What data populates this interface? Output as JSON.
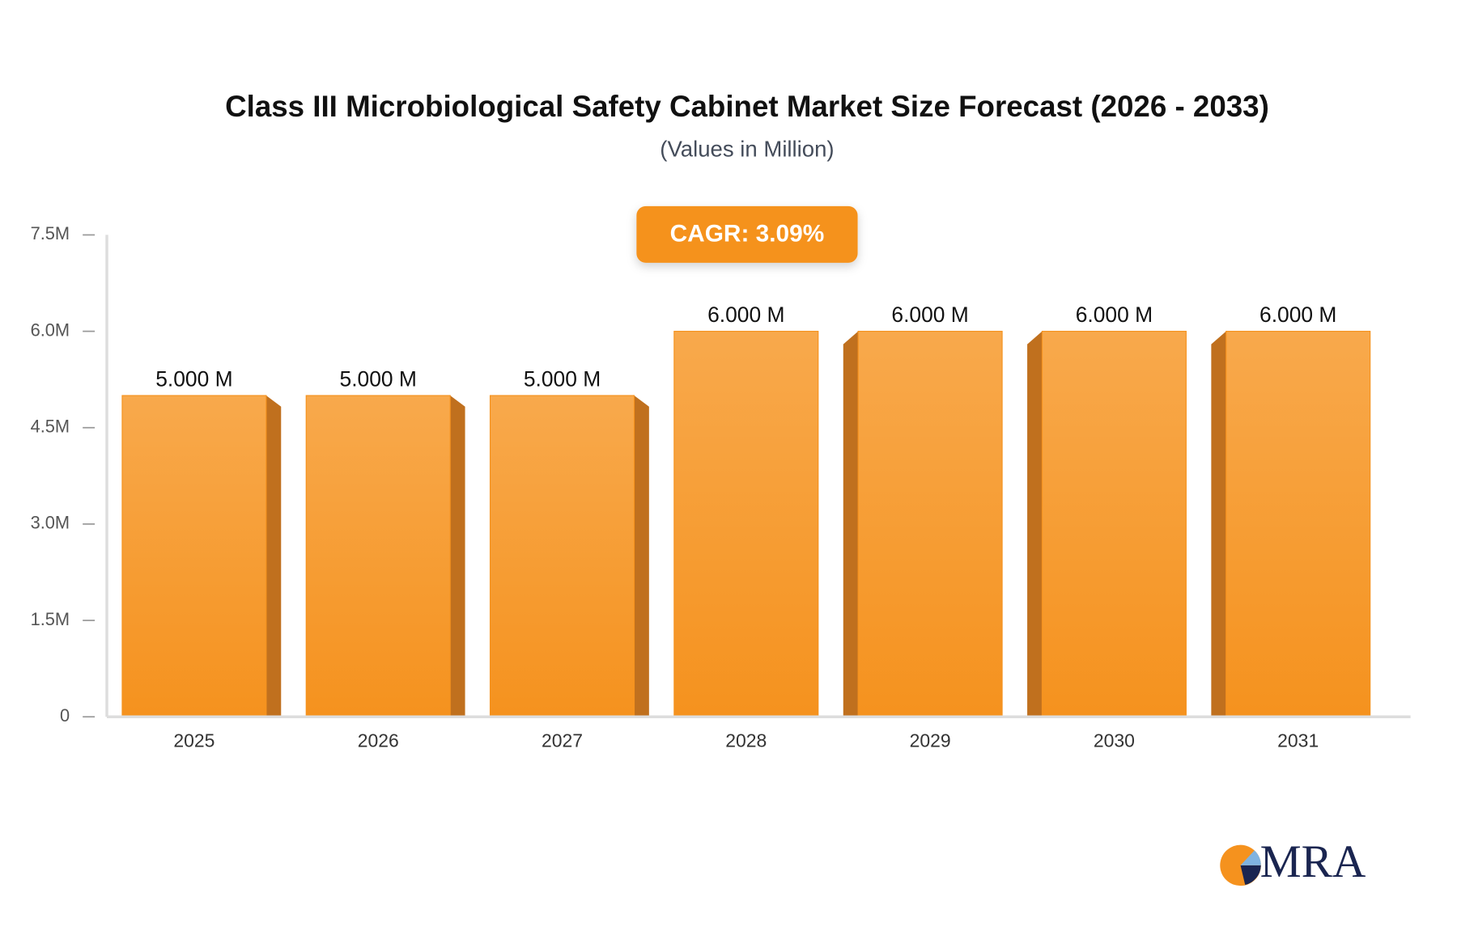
{
  "chart_data": {
    "type": "bar",
    "title": "Class III Microbiological Safety Cabinet Market Size Forecast (2026 - 2033)",
    "subtitle": "(Values in Million)",
    "annotation": "CAGR: 3.09%",
    "logo_text": "MRA",
    "categories": [
      "2025",
      "2026",
      "2027",
      "2028",
      "2029",
      "2030",
      "2031"
    ],
    "values": [
      5000000,
      5000000,
      5000000,
      6000000,
      6000000,
      6000000,
      6000000
    ],
    "value_labels": [
      "5.000 M",
      "5.000 M",
      "5.000 M",
      "6.000 M",
      "6.000 M",
      "6.000 M",
      "6.000 M"
    ],
    "color": "#f5921e",
    "ylim": [
      0,
      7500000
    ],
    "yticks": [
      0,
      {
        "value": 1500000,
        "label": "1.5M"
      },
      {
        "value": 3000000,
        "label": "3.0M"
      },
      {
        "value": 4500000,
        "label": "4.5M"
      },
      {
        "value": 6000000,
        "label": "6.0M"
      },
      {
        "value": 7500000,
        "label": "7.5M"
      }
    ],
    "grid": false
  }
}
